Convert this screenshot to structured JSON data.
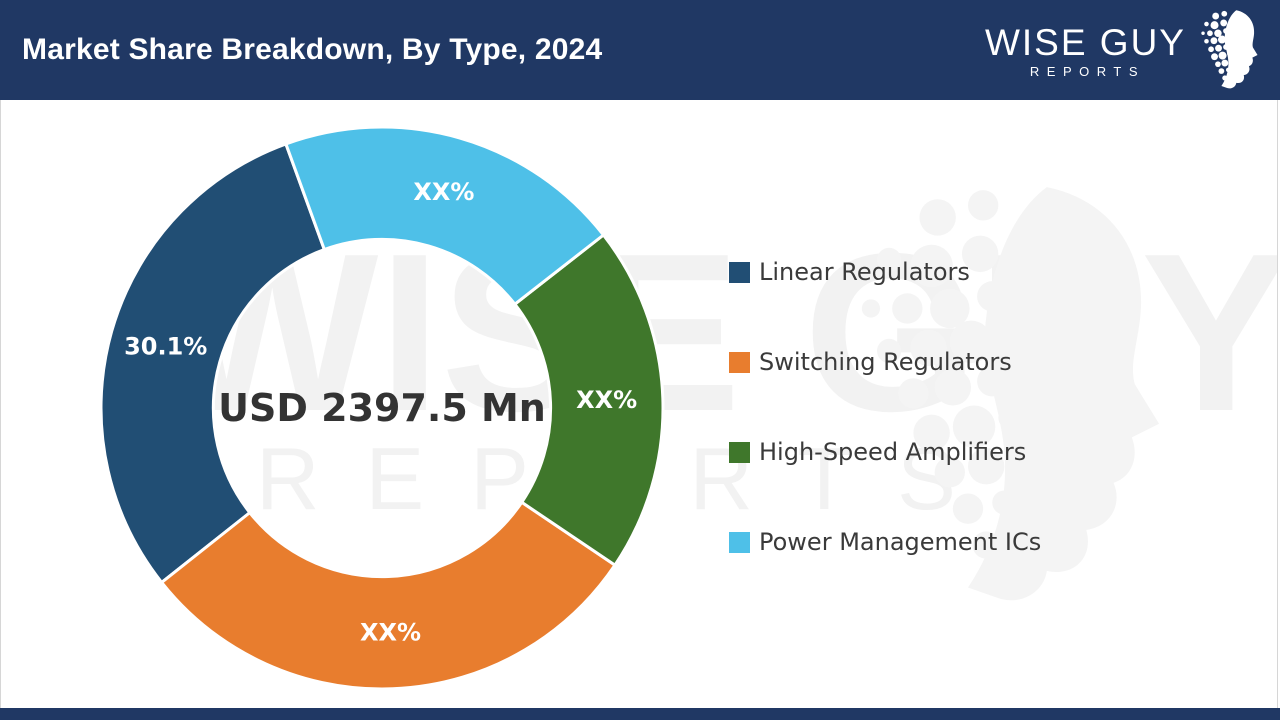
{
  "header": {
    "title": "Market Share Breakdown, By Type, 2024",
    "logo": {
      "line1": "WISE GUY",
      "line2": "REPORTS",
      "icon": "face-dots-logo"
    }
  },
  "watermark": {
    "line1": "WISE GUY",
    "line2": "REPORTS",
    "icon": "face-dots-watermark"
  },
  "chart_data": {
    "type": "pie",
    "subtype": "donut",
    "title": "Market Share Breakdown, By Type, 2024",
    "center_label": "USD 2397.5 Mn",
    "start_angle_deg": 110,
    "direction": "ccw",
    "inner_radius_ratio": 0.6,
    "legend_position": "right",
    "slices": [
      {
        "name": "Linear Regulators",
        "value": 30.1,
        "label": "30.1%",
        "color": "#214E74"
      },
      {
        "name": "Switching Regulators",
        "value": 29.9,
        "label": "XX%",
        "color": "#E87D2E"
      },
      {
        "name": "High-Speed Amplifiers",
        "value": 20.0,
        "label": "XX%",
        "color": "#3F772B"
      },
      {
        "name": "Power Management ICs",
        "value": 20.0,
        "label": "XX%",
        "color": "#4EC0E8"
      }
    ]
  },
  "colors": {
    "header_bg": "#203864",
    "footer_bg": "#203864",
    "slice_label_text": "#FFFFFF",
    "center_text": "#333333",
    "legend_text": "#3A3A3A",
    "watermark": "#F2F2F2",
    "separator": "#FFFFFF"
  }
}
